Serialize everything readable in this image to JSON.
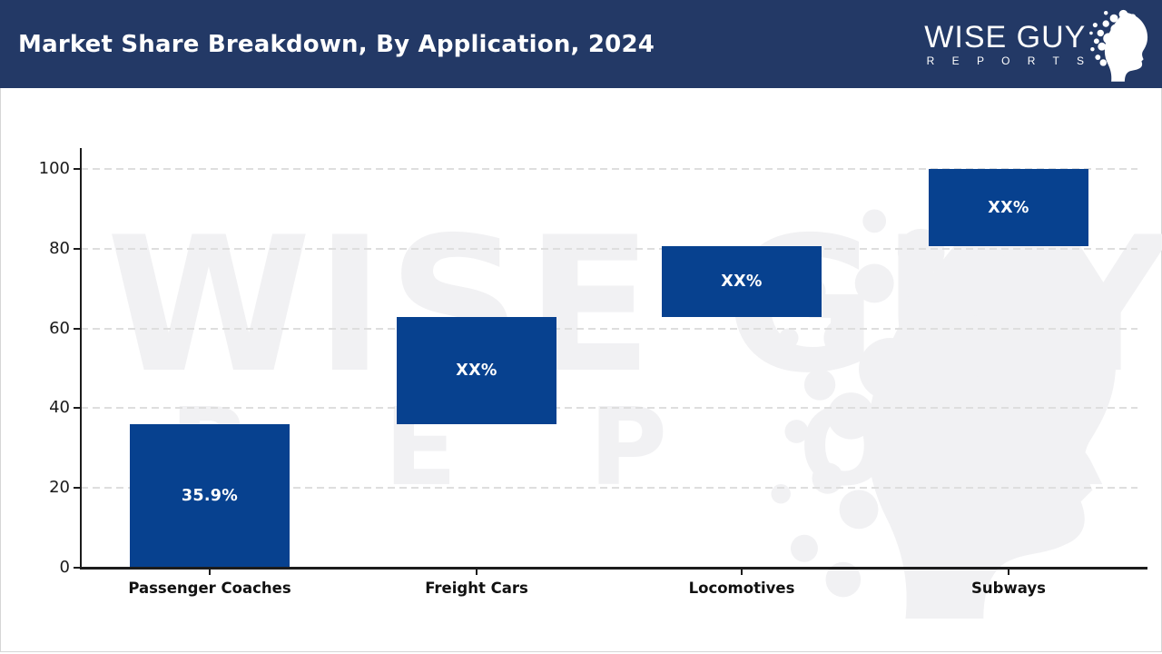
{
  "header": {
    "title": "Market Share Breakdown, By Application, 2024",
    "logo": {
      "name": "WISE GUY",
      "sub": "R E P O R T S"
    }
  },
  "watermark": {
    "line1": "WISE GUY",
    "line2": "R E P O R T S"
  },
  "chart_data": {
    "type": "bar",
    "subtype": "waterfall",
    "title": "Market Share Breakdown, By Application, 2024",
    "categories": [
      "Passenger Coaches",
      "Freight Cars",
      "Locomotives",
      "Subways"
    ],
    "segments": [
      {
        "category": "Passenger Coaches",
        "start": 0,
        "end": 35.9,
        "label": "35.9%"
      },
      {
        "category": "Freight Cars",
        "start": 35.9,
        "end": 62.8,
        "label": "XX%"
      },
      {
        "category": "Locomotives",
        "start": 62.8,
        "end": 80.7,
        "label": "XX%"
      },
      {
        "category": "Subways",
        "start": 80.7,
        "end": 100,
        "label": "XX%"
      }
    ],
    "yticks": [
      0,
      20,
      40,
      60,
      80,
      100
    ],
    "ylim": [
      0,
      105
    ],
    "xlabel": "",
    "ylabel": "",
    "grid": "dashed-horizontal",
    "legend": "none",
    "bar_color": "#07418f",
    "bar_label_color": "#ffffff"
  },
  "colors": {
    "header_bg": "#233966",
    "bar": "#07418f",
    "grid": "#dedede",
    "axis": "#1c1c1c",
    "watermark": "#f1f1f3",
    "panel_border": "#d6d6d6"
  }
}
